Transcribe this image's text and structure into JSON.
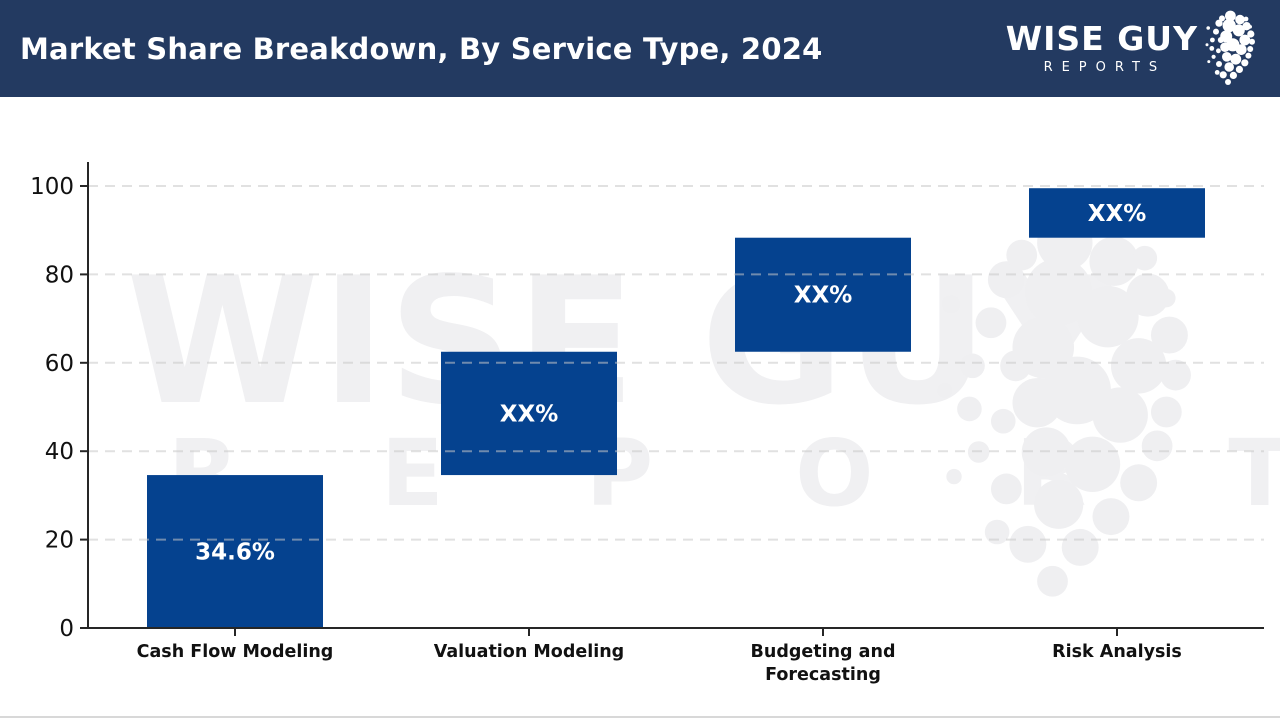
{
  "header": {
    "title": "Market Share Breakdown, By Service Type, 2024",
    "background_color": "#233a61"
  },
  "logo": {
    "name": "WISE GUY",
    "subtitle": "REPORTS"
  },
  "watermark": {
    "line1": "WISE GUY",
    "line2": "R E P O R T S"
  },
  "chart_data": {
    "type": "bar",
    "subtype": "waterfall",
    "title": "Market Share Breakdown, By Service Type, 2024",
    "categories": [
      "Cash Flow Modeling",
      "Valuation Modeling",
      "Budgeting and Forecasting",
      "Risk Analysis"
    ],
    "category_label_lines": [
      [
        "Cash Flow Modeling"
      ],
      [
        "Valuation Modeling"
      ],
      [
        "Budgeting and",
        "Forecasting"
      ],
      [
        "Risk Analysis"
      ]
    ],
    "segments": [
      {
        "category": "Cash Flow Modeling",
        "start": 0,
        "end": 34.6,
        "label": "34.6%"
      },
      {
        "category": "Valuation Modeling",
        "start": 34.6,
        "end": 62.5,
        "label": "XX%"
      },
      {
        "category": "Budgeting and Forecasting",
        "start": 62.5,
        "end": 88.3,
        "label": "XX%"
      },
      {
        "category": "Risk Analysis",
        "start": 88.3,
        "end": 99.5,
        "label": "XX%"
      }
    ],
    "y_ticks": [
      0,
      20,
      40,
      60,
      80,
      100
    ],
    "ylim": [
      0,
      105
    ],
    "xlabel": "",
    "ylabel": "",
    "grid": true,
    "grid_style": "dashed",
    "legend": "none",
    "bar_color": "#05428f",
    "bar_label_color": "#ffffff",
    "axis_color": "#262626",
    "tick_label_color": "#111111"
  }
}
